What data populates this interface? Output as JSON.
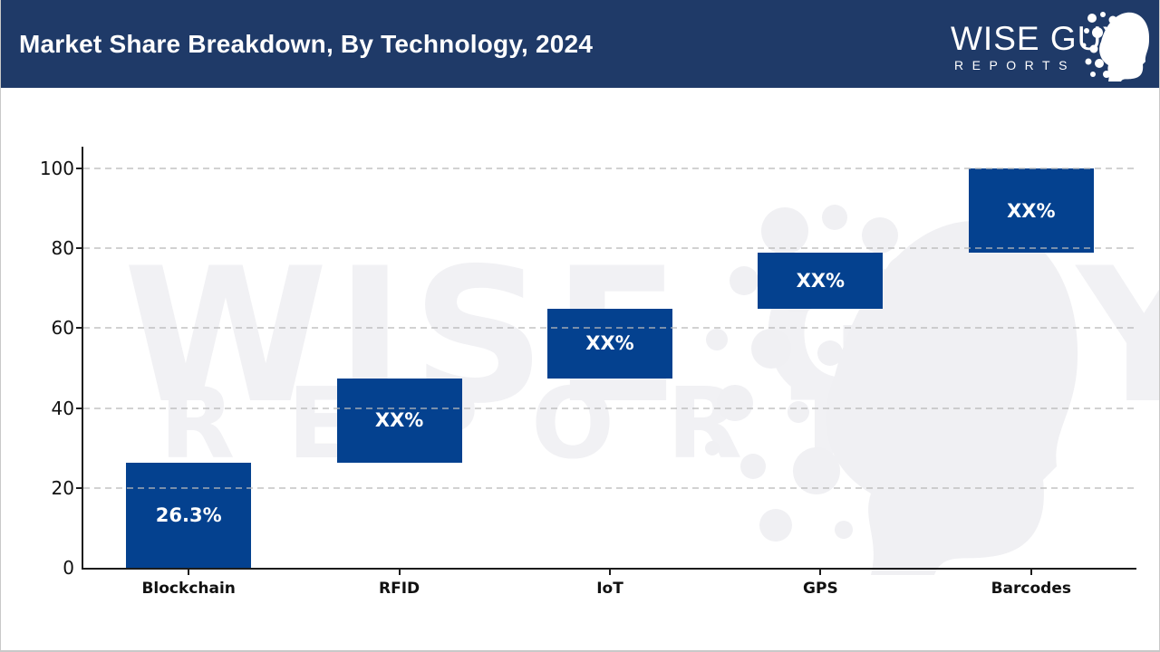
{
  "header": {
    "title": "Market Share Breakdown, By Technology, 2024",
    "logo": {
      "line1": "WISE GUY",
      "line2": "REPORTS"
    }
  },
  "watermark": {
    "line1": "WISE GUY",
    "line2": "REPORTS"
  },
  "colors": {
    "header_bg": "#1f3a68",
    "bar": "#04418f",
    "watermark": "#f1f1f4",
    "grid": "#d9d9d9"
  },
  "chart_data": {
    "type": "bar",
    "subtype": "floating-waterfall",
    "title": "Market Share Breakdown, By Technology, 2024",
    "categories": [
      "Blockchain",
      "RFID",
      "IoT",
      "GPS",
      "Barcodes"
    ],
    "segments": [
      {
        "category": "Blockchain",
        "start": 0,
        "end": 26.3,
        "label": "26.3%"
      },
      {
        "category": "RFID",
        "start": 26.3,
        "end": 47.5,
        "label": "XX%"
      },
      {
        "category": "IoT",
        "start": 47.5,
        "end": 64.8,
        "label": "XX%"
      },
      {
        "category": "GPS",
        "start": 64.8,
        "end": 78.8,
        "label": "XX%"
      },
      {
        "category": "Barcodes",
        "start": 78.8,
        "end": 100,
        "label": "XX%"
      }
    ],
    "y_ticks": [
      0,
      20,
      40,
      60,
      80,
      100
    ],
    "ylim": [
      0,
      100
    ],
    "xlabel": "",
    "ylabel": "",
    "grid": "horizontal-dashed",
    "legend": "none"
  }
}
